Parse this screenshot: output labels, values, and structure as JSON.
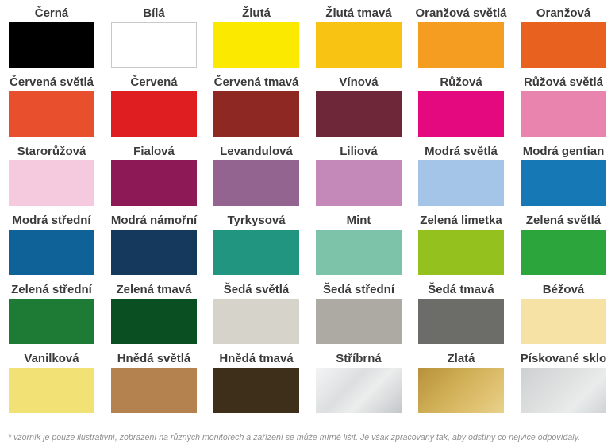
{
  "palette": {
    "rows": 6,
    "cols": 6,
    "label_color": "#3a3a3a",
    "swatches": [
      {
        "label": "Černá",
        "color": "#000000"
      },
      {
        "label": "Bílá",
        "color": "#ffffff",
        "border": "#c9c9c9"
      },
      {
        "label": "Žlutá",
        "color": "#fce900"
      },
      {
        "label": "Žlutá tmavá",
        "color": "#f9c313"
      },
      {
        "label": "Oranžová světlá",
        "color": "#f49d20"
      },
      {
        "label": "Oranžová",
        "color": "#e8611e"
      },
      {
        "label": "Červená světlá",
        "color": "#e8502d"
      },
      {
        "label": "Červená",
        "color": "#de1e21"
      },
      {
        "label": "Červená tmavá",
        "color": "#8d2823"
      },
      {
        "label": "Vínová",
        "color": "#6e2639"
      },
      {
        "label": "Růžová",
        "color": "#e5097f"
      },
      {
        "label": "Růžová světlá",
        "color": "#e884ad"
      },
      {
        "label": "Starorůžová",
        "color": "#f5cade"
      },
      {
        "label": "Fialová",
        "color": "#8d1a57"
      },
      {
        "label": "Levandulová",
        "color": "#92648f"
      },
      {
        "label": "Liliová",
        "color": "#c489b8"
      },
      {
        "label": "Modrá světlá",
        "color": "#a4c4e8"
      },
      {
        "label": "Modrá gentian",
        "color": "#1679b5"
      },
      {
        "label": "Modrá střední",
        "color": "#0e6298"
      },
      {
        "label": "Modrá námořní",
        "color": "#15395d"
      },
      {
        "label": "Tyrkysová",
        "color": "#21957f"
      },
      {
        "label": "Mint",
        "color": "#7dc3aa"
      },
      {
        "label": "Zelená limetka",
        "color": "#95c11f"
      },
      {
        "label": "Zelená světlá",
        "color": "#2ba53c"
      },
      {
        "label": "Zelená střední",
        "color": "#1e7b35"
      },
      {
        "label": "Zelená tmavá",
        "color": "#0a4f22"
      },
      {
        "label": "Šedá světlá",
        "color": "#d6d3ca"
      },
      {
        "label": "Šedá střední",
        "color": "#acaaa3"
      },
      {
        "label": "Šedá tmavá",
        "color": "#6c6c69"
      },
      {
        "label": "Béžová",
        "color": "#f7e2a5"
      },
      {
        "label": "Vanilková",
        "color": "#f2e175"
      },
      {
        "label": "Hnědá světlá",
        "color": "#b3824e"
      },
      {
        "label": "Hnědá tmavá",
        "color": "#3e2f1b"
      },
      {
        "label": "Stříbrná",
        "gradient": {
          "angle": 135,
          "stops": [
            "#f3f4f5 0%",
            "#dcdfe0 40%",
            "#eceded 60%",
            "#c3c7c9 100%"
          ]
        }
      },
      {
        "label": "Zlatá",
        "gradient": {
          "angle": 135,
          "stops": [
            "#b7913a 0%",
            "#cfae55 40%",
            "#e0c272 75%",
            "#e7d28c 100%"
          ]
        }
      },
      {
        "label": "Pískované sklo",
        "gradient": {
          "angle": 135,
          "stops": [
            "#cdd0d1 0%",
            "#dfe1e1 45%",
            "#eaecec 70%",
            "#cfd3d4 100%"
          ]
        }
      }
    ]
  },
  "footer": {
    "note": "* vzorník je pouze ilustrativní, zobrazení na různých monitorech a zařízení se může mírně lišit. Je však zpracovaný tak, aby odstíny co nejvíce odpovídaly."
  }
}
